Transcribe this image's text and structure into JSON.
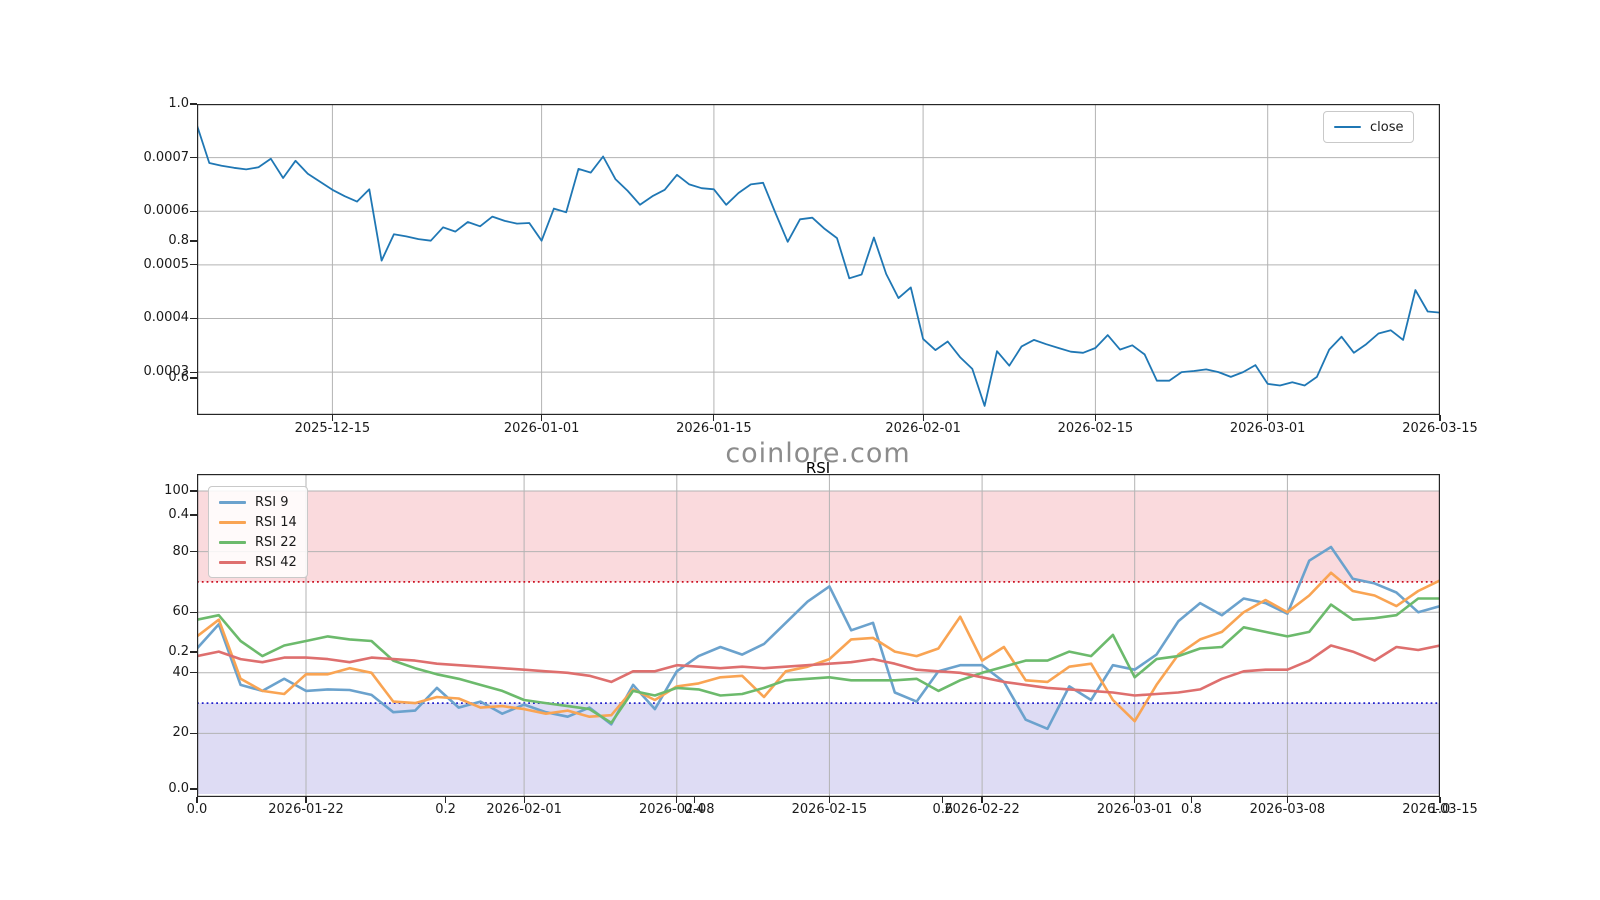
{
  "watermark": "coinlore.com",
  "figure_axis": {
    "y_tick_labels": [
      "1.0",
      "0.8",
      "0.6",
      "0.4",
      "0.2",
      "0.0"
    ],
    "x_tick_labels": [
      "0.0",
      "0.2",
      "0.4",
      "0.6",
      "0.8",
      "1.0"
    ]
  },
  "chart_data": [
    {
      "id": "price",
      "type": "line",
      "title": "",
      "xlabel": "",
      "ylabel": "",
      "grid": true,
      "legend_position": "upper right",
      "ylim": [
        0.00022,
        0.0008
      ],
      "y_ticks": [
        {
          "label": "0.0007",
          "value": 0.0007
        },
        {
          "label": "0.0006",
          "value": 0.0006
        },
        {
          "label": "0.0005",
          "value": 0.0005
        },
        {
          "label": "0.0004",
          "value": 0.0004
        },
        {
          "label": "0.0003",
          "value": 0.0003
        }
      ],
      "x_ticks": [
        {
          "label": "2025-12-15",
          "day": 11
        },
        {
          "label": "2026-01-01",
          "day": 28
        },
        {
          "label": "2026-01-15",
          "day": 42
        },
        {
          "label": "2026-02-01",
          "day": 59
        },
        {
          "label": "2026-02-15",
          "day": 73
        },
        {
          "label": "2026-03-01",
          "day": 87
        },
        {
          "label": "2026-03-15",
          "day": 101
        }
      ],
      "series": [
        {
          "name": "close",
          "color": "#1f77b4",
          "width": 1.8,
          "values": [
            0.00076,
            0.00069,
            0.000685,
            0.000681,
            0.000678,
            0.000682,
            0.000698,
            0.000662,
            0.000694,
            0.00067,
            0.000655,
            0.00064,
            0.000628,
            0.000618,
            0.000641,
            0.000508,
            0.000557,
            0.000553,
            0.000548,
            0.000545,
            0.00057,
            0.000562,
            0.00058,
            0.000572,
            0.00059,
            0.000582,
            0.000577,
            0.000578,
            0.000545,
            0.000605,
            0.000598,
            0.000679,
            0.000672,
            0.000702,
            0.00066,
            0.000638,
            0.000612,
            0.000628,
            0.00064,
            0.000668,
            0.00065,
            0.000643,
            0.000641,
            0.000612,
            0.000634,
            0.00065,
            0.000653,
            0.000597,
            0.000543,
            0.000585,
            0.000588,
            0.000567,
            0.00055,
            0.000475,
            0.000482,
            0.000551,
            0.000483,
            0.000438,
            0.000458,
            0.000362,
            0.000341,
            0.000357,
            0.000328,
            0.000306,
            0.000237,
            0.000339,
            0.000312,
            0.000348,
            0.00036,
            0.000352,
            0.000345,
            0.000338,
            0.000336,
            0.000345,
            0.000369,
            0.000342,
            0.00035,
            0.000333,
            0.000284,
            0.000284,
            0.0003,
            0.000302,
            0.000305,
            0.0003,
            0.000291,
            0.0003,
            0.000313,
            0.000278,
            0.000275,
            0.000281,
            0.000275,
            0.000291,
            0.000342,
            0.000366,
            0.000336,
            0.000352,
            0.000372,
            0.000378,
            0.00036,
            0.000453,
            0.000413,
            0.000411
          ]
        }
      ]
    },
    {
      "id": "rsi",
      "type": "line",
      "title": "RSI",
      "xlabel": "",
      "ylabel": "",
      "grid": true,
      "legend_position": "upper left",
      "ylim": [
        -1,
        105.6
      ],
      "bands": [
        {
          "from": 70,
          "to": 100,
          "color": "#fadadd"
        },
        {
          "from": 0,
          "to": 30,
          "color": "#dedcf4"
        }
      ],
      "ref_lines": [
        {
          "value": 70,
          "color": "#cc1122",
          "style": "dotted"
        },
        {
          "value": 30,
          "color": "#2222cc",
          "style": "dotted"
        }
      ],
      "y_ticks": [
        {
          "label": "100",
          "value": 100
        },
        {
          "label": "80",
          "value": 80
        },
        {
          "label": "60",
          "value": 60
        },
        {
          "label": "40",
          "value": 40
        },
        {
          "label": "20",
          "value": 20
        }
      ],
      "x_ticks": [
        {
          "label": "2026-01-22",
          "day": 5
        },
        {
          "label": "2026-02-01",
          "day": 15
        },
        {
          "label": "2026-02-08",
          "day": 22
        },
        {
          "label": "2026-02-15",
          "day": 29
        },
        {
          "label": "2026-02-22",
          "day": 36
        },
        {
          "label": "2026-03-01",
          "day": 43
        },
        {
          "label": "2026-03-08",
          "day": 50
        },
        {
          "label": "2026-03-15",
          "day": 57
        }
      ],
      "series": [
        {
          "name": "RSI 9",
          "color": "#6ba2cd",
          "width": 2.6,
          "values": [
            48,
            56,
            36,
            34,
            38,
            34,
            34.5,
            34.3,
            32.7,
            27,
            27.5,
            35,
            28.5,
            30.5,
            26.5,
            29.5,
            27,
            25.5,
            28.5,
            23,
            36,
            28,
            40.5,
            45.5,
            48.5,
            46,
            49.5,
            56.5,
            63.5,
            68.5,
            54,
            56.5,
            33.5,
            30.5,
            40.5,
            42.5,
            42.5,
            37,
            24.5,
            21.5,
            35.5,
            31,
            42.5,
            41,
            46,
            57,
            63,
            59,
            64.5,
            63,
            59.5,
            77,
            81.5,
            71,
            69.5,
            66.5,
            60,
            62
          ]
        },
        {
          "name": "RSI 14",
          "color": "#f9a453",
          "width": 2.6,
          "values": [
            52,
            57.5,
            38,
            34,
            33,
            39.5,
            39.5,
            41.5,
            40,
            30.5,
            30,
            32,
            31.5,
            28.5,
            29,
            28,
            26.5,
            27.5,
            25.5,
            26,
            34.5,
            31,
            35.5,
            36.5,
            38.5,
            39,
            32,
            40.5,
            42,
            44.5,
            51,
            51.5,
            47,
            45.5,
            48,
            58.5,
            44,
            48.5,
            37.5,
            37,
            42,
            43,
            31,
            24,
            36,
            46,
            51,
            53.5,
            60,
            64,
            60,
            65.5,
            73,
            67,
            65.5,
            62,
            67,
            70.5
          ]
        },
        {
          "name": "RSI 22",
          "color": "#6cba6c",
          "width": 2.6,
          "values": [
            57.5,
            59,
            50.5,
            45.5,
            49,
            50.5,
            52,
            51,
            50.5,
            44,
            41.5,
            39.5,
            38,
            36,
            34,
            31,
            30,
            29,
            28,
            23.5,
            34,
            32.5,
            35,
            34.5,
            32.5,
            33,
            35,
            37.5,
            38,
            38.5,
            37.5,
            37.5,
            37.5,
            38,
            34,
            37.5,
            40,
            42,
            44,
            44,
            47,
            45.5,
            52.5,
            38.5,
            44.5,
            45.5,
            48,
            48.5,
            55,
            53.5,
            52,
            53.5,
            62.5,
            57.5,
            58,
            59,
            64.5,
            64.5
          ]
        },
        {
          "name": "RSI 42",
          "color": "#de6f6e",
          "width": 2.6,
          "values": [
            45.5,
            47,
            44.5,
            43.5,
            45,
            45,
            44.5,
            43.5,
            45,
            44.5,
            44,
            43,
            42.5,
            42,
            41.5,
            41,
            40.5,
            40,
            39,
            37,
            40.5,
            40.5,
            42.5,
            42,
            41.5,
            42,
            41.5,
            42,
            42.5,
            43,
            43.5,
            44.5,
            43,
            41,
            40.5,
            40,
            38.5,
            37,
            36,
            35,
            34.5,
            34,
            33.5,
            32.5,
            33,
            33.5,
            34.5,
            38,
            40.5,
            41,
            41,
            44,
            49,
            47,
            44,
            48.5,
            47.5,
            49
          ]
        }
      ]
    }
  ],
  "style": {
    "grid_color": "#b3b3b3",
    "spine_color": "#262626",
    "background": "#ffffff"
  }
}
